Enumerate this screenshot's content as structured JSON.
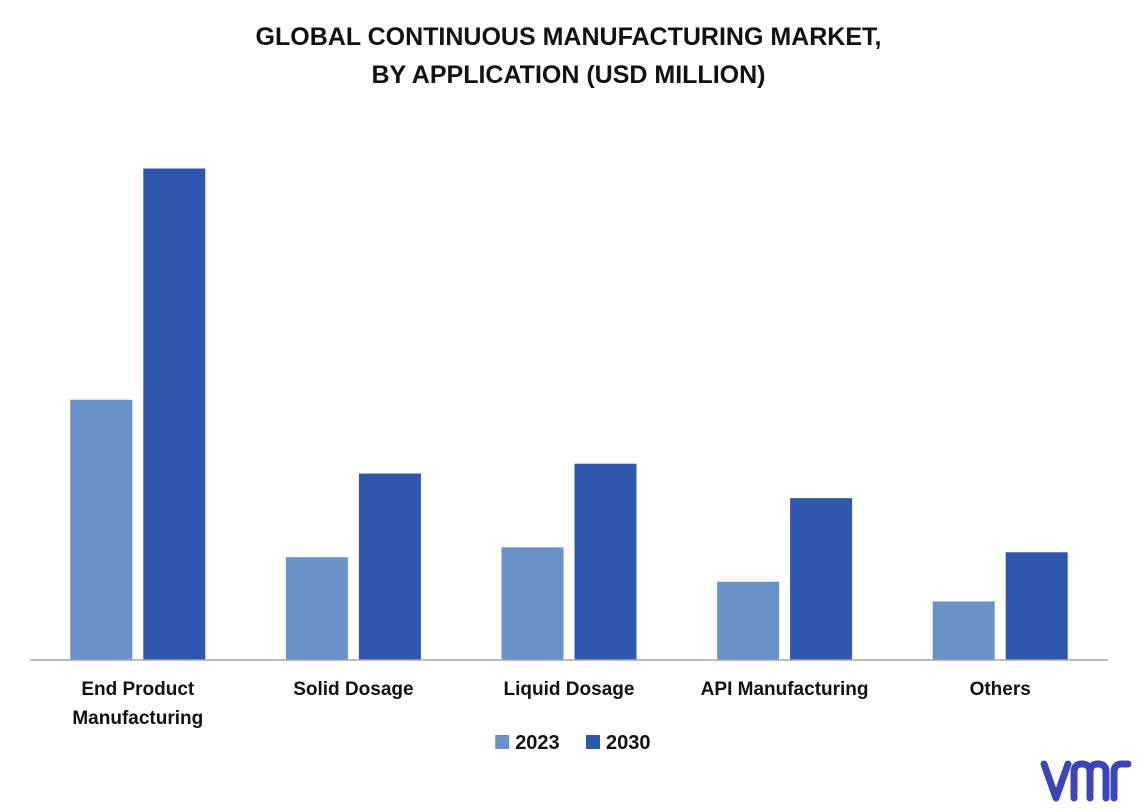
{
  "chart_data": {
    "type": "bar",
    "title_lines": [
      "GLOBAL CONTINUOUS MANUFACTURING MARKET,",
      "BY APPLICATION (USD MILLION)"
    ],
    "categories": [
      [
        "End Product",
        "Manufacturing"
      ],
      [
        "Solid Dosage"
      ],
      [
        "Liquid Dosage"
      ],
      [
        "API Manufacturing"
      ],
      [
        "Others"
      ]
    ],
    "series": [
      {
        "name": "2023",
        "color": "#6a92c8",
        "values": [
          53,
          21,
          23,
          16,
          12
        ]
      },
      {
        "name": "2030",
        "color": "#2f57ad",
        "values": [
          100,
          38,
          40,
          33,
          22
        ]
      }
    ],
    "ylim": [
      0,
      100
    ],
    "y_axis_shown": false,
    "grid": false,
    "legend_position": "bottom-center"
  },
  "brand": {
    "logo_text": "vmr",
    "logo_color": "#3b45b8"
  }
}
